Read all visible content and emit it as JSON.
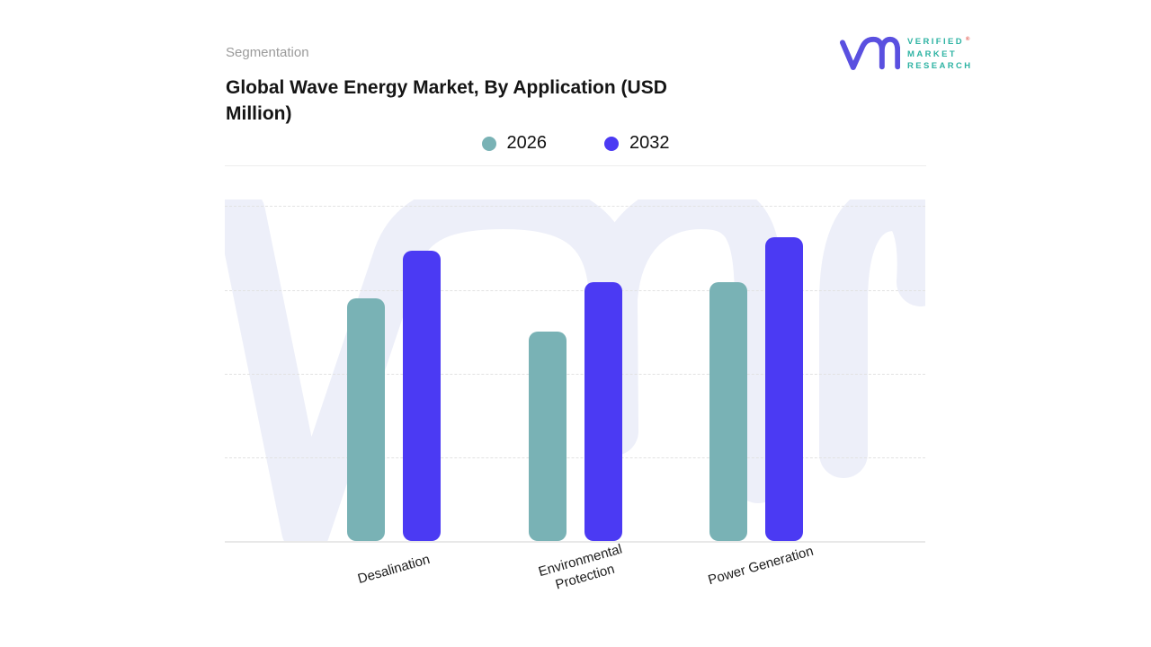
{
  "page": {
    "eyebrow": "Segmentation",
    "title": "Global Wave Energy Market, By Application (USD Million)"
  },
  "logo": {
    "mark": "vm-script-monogram",
    "lines": [
      "VERIFIED",
      "MARKET",
      "RESEARCH"
    ],
    "registered_symbol": "®",
    "mark_color": "#5a50e0",
    "text_color": "#2eb3a3"
  },
  "legend": [
    {
      "label": "2026",
      "color": "#79b2b5"
    },
    {
      "label": "2032",
      "color": "#4b3af3"
    }
  ],
  "colors": {
    "series_2026": "#79b2b5",
    "series_2032": "#4b3af3",
    "watermark": "#edeff9",
    "gridline": "#e2e2e2",
    "axis_line": "#e8e8e8",
    "eyebrow_text": "#9b9b9b",
    "title_text": "#151515"
  },
  "chart_data": {
    "type": "bar",
    "title": "Global Wave Energy Market, By Application (USD Million)",
    "categories": [
      "Desalination",
      "Environmental Protection",
      "Power Generation"
    ],
    "category_display": [
      "Desalination",
      "Environmental\nProtection",
      "Power Generation"
    ],
    "series": [
      {
        "name": "2026",
        "color": "#79b2b5",
        "values": [
          2.9,
          2.5,
          3.09
        ]
      },
      {
        "name": "2032",
        "color": "#4b3af3",
        "values": [
          3.47,
          3.09,
          3.63
        ]
      }
    ],
    "xlabel": "",
    "ylabel": "",
    "ylim": [
      0,
      4.08
    ],
    "gridline_values": [
      1,
      2,
      3,
      4
    ],
    "grid": "horizontal-dashed",
    "value_axis_labels": "none shown; values estimated in gridline units",
    "legend_position": "top-center",
    "bar_corner_radius": 10
  }
}
